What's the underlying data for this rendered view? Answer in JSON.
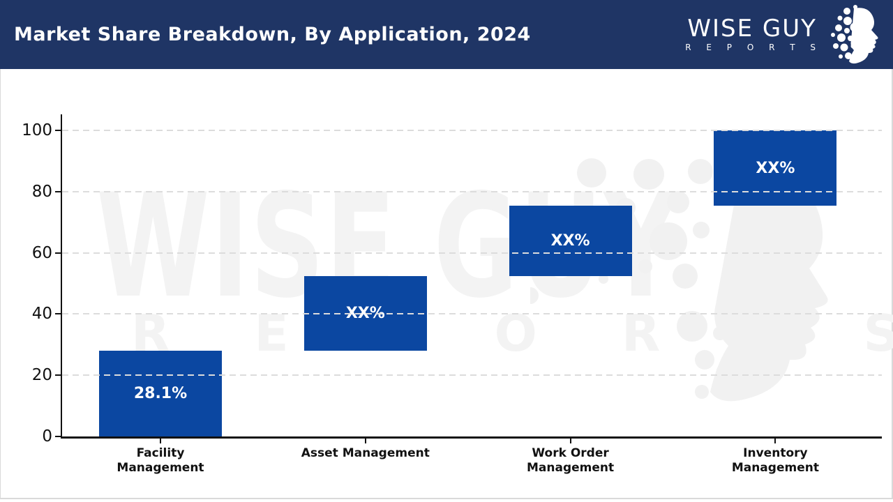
{
  "header": {
    "title": "Market Share Breakdown, By Application, 2024",
    "brand": {
      "line1": "WISE GUY",
      "line2": "R E P O R T S"
    }
  },
  "watermark": {
    "line1": "WISE GUY",
    "line2": "R E P O R T S"
  },
  "colors": {
    "header_bg": "#1f3565",
    "bar": "#0b47a1",
    "grid": "#dcdcdc",
    "watermark": "#f3f3f3",
    "bar_label": "#ffffff",
    "axis": "#111111"
  },
  "chart_data": {
    "type": "bar",
    "subtype": "waterfall",
    "title": "Market Share Breakdown, By Application, 2024",
    "categories": [
      "Facility Management",
      "Asset Management",
      "Work Order Management",
      "Inventory Management"
    ],
    "categories_display": [
      "Facility\nManagement",
      "Asset Management",
      "Work Order\nManagement",
      "Inventory\nManagement"
    ],
    "segments": [
      {
        "category": "Facility Management",
        "start": 0,
        "end": 28.1,
        "label": "28.1%"
      },
      {
        "category": "Asset Management",
        "start": 28.1,
        "end": 52.5,
        "label": "XX%"
      },
      {
        "category": "Work Order Management",
        "start": 52.5,
        "end": 75.3,
        "label": "XX%"
      },
      {
        "category": "Inventory Management",
        "start": 75.3,
        "end": 100,
        "label": "XX%"
      }
    ],
    "xlabel": "",
    "ylabel": "",
    "ylim": [
      0,
      100
    ],
    "yticks": [
      0,
      20,
      40,
      60,
      80,
      100
    ],
    "grid": "dashed-horizontal",
    "legend": "none"
  }
}
